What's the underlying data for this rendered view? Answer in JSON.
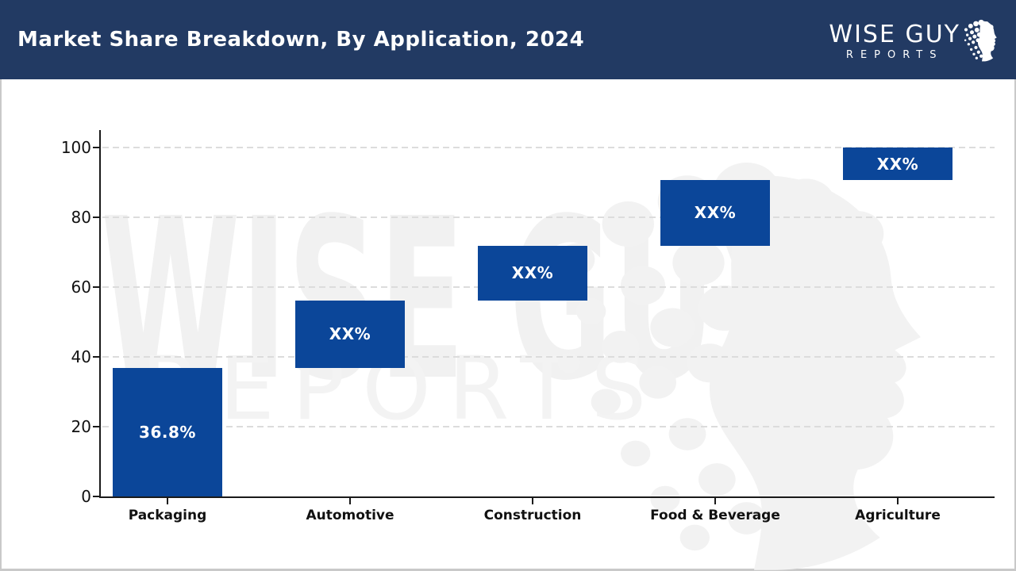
{
  "header": {
    "title": "Market Share Breakdown, By Application, 2024",
    "logo": {
      "line1": "WISE GUY",
      "line2": "REPORTS"
    }
  },
  "watermark": {
    "line1": "WISE GUY",
    "line2": "REPORTS"
  },
  "colors": {
    "header_bg": "#223a63",
    "bar": "#0b4699",
    "bar_label": "#ffffff",
    "grid": "#dcdcdc",
    "axis": "#1a1a1a",
    "frame_border": "#c9c9c9",
    "watermark": "#f2f2f2"
  },
  "chart_data": {
    "type": "bar",
    "subtype": "waterfall-stepped",
    "title": "Market Share Breakdown, By Application, 2024",
    "xlabel": "",
    "ylabel": "",
    "categories": [
      "Packaging",
      "Automotive",
      "Construction",
      "Food & Beverage",
      "Agriculture"
    ],
    "segments": [
      {
        "category": "Packaging",
        "start": 0,
        "end": 36.8,
        "label": "36.8%"
      },
      {
        "category": "Automotive",
        "start": 36.8,
        "end": 56.2,
        "label": "XX%"
      },
      {
        "category": "Construction",
        "start": 56.2,
        "end": 71.9,
        "label": "XX%"
      },
      {
        "category": "Food & Beverage",
        "start": 71.9,
        "end": 90.6,
        "label": "XX%"
      },
      {
        "category": "Agriculture",
        "start": 90.6,
        "end": 100,
        "label": "XX%"
      }
    ],
    "yticks": [
      0,
      20,
      40,
      60,
      80,
      100
    ],
    "ylim": [
      0,
      104.5
    ],
    "grid": "horizontal-dashed",
    "legend": "none"
  }
}
